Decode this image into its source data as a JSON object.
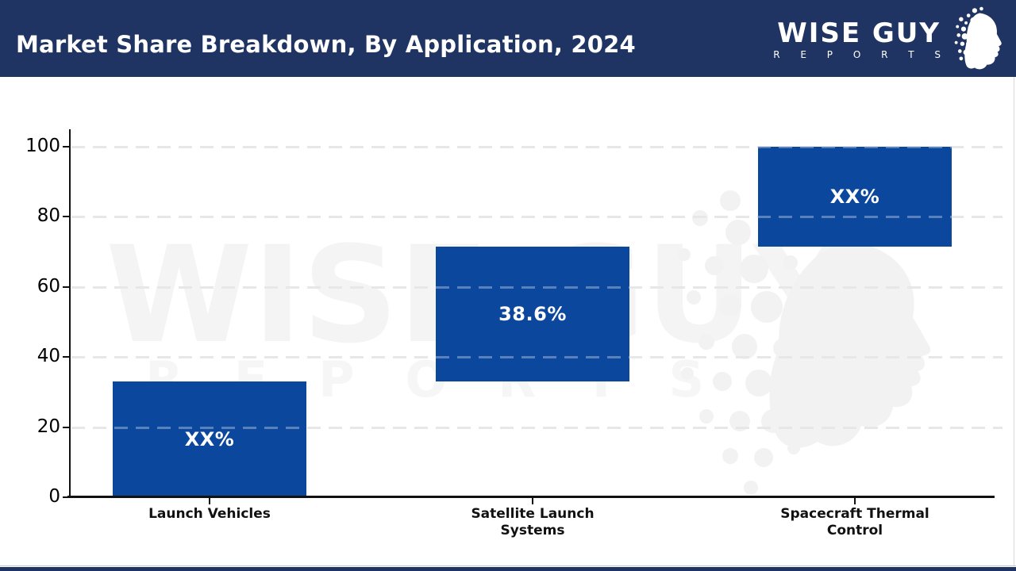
{
  "header": {
    "title": "Market Share Breakdown, By Application, 2024",
    "bg_color": "#1f3462",
    "logo": {
      "line1": "WISE GUY",
      "line2": "R E P O R T S"
    }
  },
  "watermark": {
    "line1": "WISE GUY",
    "line2": "REPORTS"
  },
  "footer": {
    "bar_color": "#1f3462"
  },
  "chart_data": {
    "type": "bar",
    "subtype": "floating-waterfall",
    "title": "Market Share Breakdown, By Application, 2024",
    "categories": [
      "Launch Vehicles",
      "Satellite Launch\nSystems",
      "Spacecraft Thermal\nControl"
    ],
    "segments": [
      {
        "category": "Launch Vehicles",
        "start": 0,
        "end": 33.0,
        "label": "XX%"
      },
      {
        "category": "Satellite Launch Systems",
        "start": 33.0,
        "end": 71.6,
        "value": 38.6,
        "label": "38.6%"
      },
      {
        "category": "Spacecraft Thermal Control",
        "start": 71.6,
        "end": 100.0,
        "label": "XX%"
      }
    ],
    "ylim": [
      0,
      105
    ],
    "yticks": [
      0,
      20,
      40,
      60,
      80,
      100
    ],
    "grid": true,
    "grid_style": "dashed",
    "legend": "none",
    "bar_color": "#0b479c",
    "bar_label_color": "#ffffff",
    "axis_color": "#111111"
  }
}
